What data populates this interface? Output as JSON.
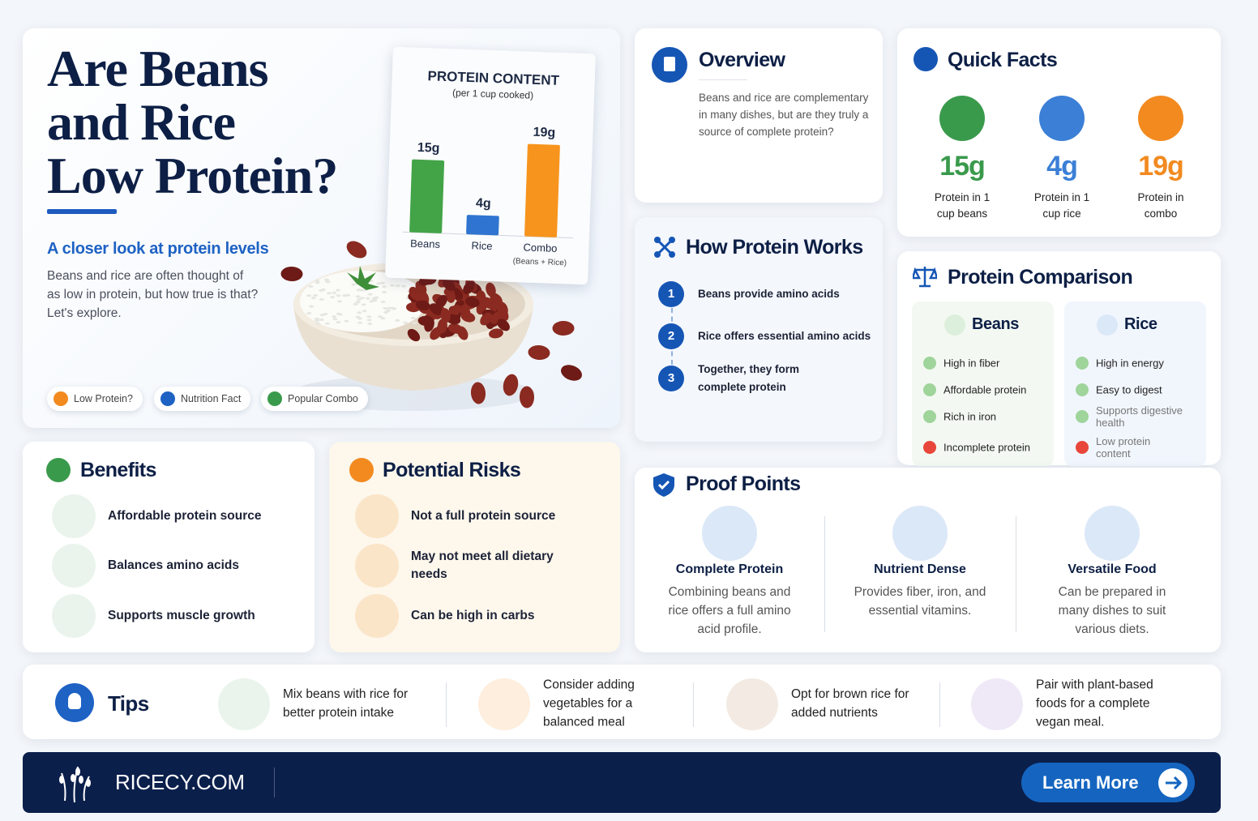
{
  "hero": {
    "title_lines": [
      "Are Beans",
      "and Rice",
      "Low Protein?"
    ],
    "subtitle": "A closer look at protein levels",
    "text": "Beans and rice are often thought of as low in protein, but how true is that? Let's explore.",
    "tags": [
      "Low Protein?",
      "Nutrition Fact",
      "Popular Combo"
    ]
  },
  "hero_chart": {
    "type": "bar",
    "title": "PROTEIN CONTENT",
    "subtitle": "(per 1 cup cooked)",
    "categories": [
      "Beans",
      "Rice",
      "Combo"
    ],
    "combo_note": "(Beans + Rice)",
    "values": [
      15,
      4,
      19
    ],
    "value_labels": [
      "15g",
      "4g",
      "19g"
    ],
    "colors": [
      "#43a447",
      "#2f74d0",
      "#f7941d"
    ]
  },
  "overview": {
    "title": "Overview",
    "text": "Beans and rice are complementary in many dishes, but are they truly a source of complete protein?"
  },
  "quick_facts": {
    "title": "Quick Facts",
    "items": [
      {
        "value": "15g",
        "label": "Protein in 1 cup beans",
        "color": "#3a9a4c"
      },
      {
        "value": "4g",
        "label": "Protein in 1 cup rice",
        "color": "#3b7fd6"
      },
      {
        "value": "19g",
        "label": "Protein in combo",
        "color": "#f28a1f"
      }
    ]
  },
  "how_protein_works": {
    "title": "How Protein Works",
    "steps": [
      {
        "number": "1",
        "text": "Beans provide amino acids"
      },
      {
        "number": "2",
        "text": "Rice offers essential amino acids"
      },
      {
        "number": "3",
        "text": "Together, they form complete protein"
      }
    ]
  },
  "comparison": {
    "title": "Protein Comparison",
    "columns": [
      {
        "name": "Beans",
        "items": [
          {
            "text": "High in fiber",
            "positive": true
          },
          {
            "text": "Affordable protein",
            "positive": true
          },
          {
            "text": "Rich in iron",
            "positive": true
          },
          {
            "text": "Incomplete protein",
            "positive": false
          }
        ]
      },
      {
        "name": "Rice",
        "items": [
          {
            "text": "High in energy",
            "positive": true
          },
          {
            "text": "Easy to digest",
            "positive": true
          },
          {
            "text": "Supports digestive health",
            "positive": true
          },
          {
            "text": "Low protein content",
            "positive": false
          }
        ]
      }
    ]
  },
  "benefits": {
    "title": "Benefits",
    "items": [
      "Affordable protein source",
      "Balances amino acids",
      "Supports muscle growth"
    ]
  },
  "risks": {
    "title": "Potential Risks",
    "items": [
      "Not a full protein source",
      "May not meet all dietary needs",
      "Can be high in carbs"
    ]
  },
  "proof_points": {
    "title": "Proof Points",
    "items": [
      {
        "title": "Complete Protein",
        "text": "Combining beans and rice offers a full amino acid profile."
      },
      {
        "title": "Nutrient Dense",
        "text": "Provides fiber, iron, and essential vitamins."
      },
      {
        "title": "Versatile Food",
        "text": "Can be prepared in many dishes to suit various diets."
      }
    ]
  },
  "tips": {
    "title": "Tips",
    "items": [
      "Mix beans with rice for better protein intake",
      "Consider adding vegetables for a balanced meal",
      "Opt for brown rice for added nutrients",
      "Pair with plant-based foods for a complete vegan meal."
    ]
  },
  "footer": {
    "brand": "RICECY.COM",
    "button": "Learn More"
  }
}
